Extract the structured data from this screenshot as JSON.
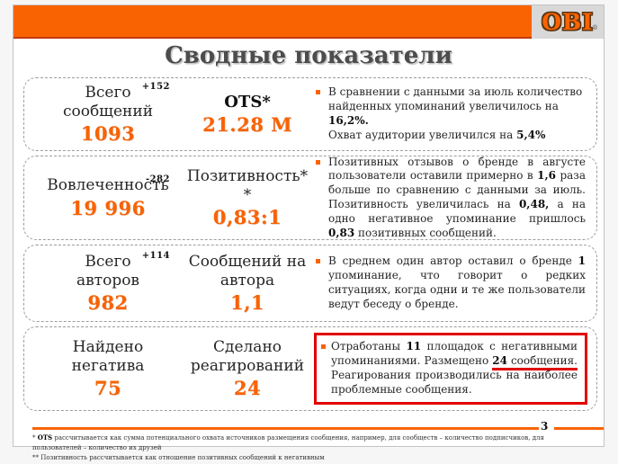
{
  "header": {
    "logo": "OBI",
    "logo_reg": "®",
    "brand_orange": "#f96302"
  },
  "title": "Сводные показатели",
  "rows": [
    {
      "metric1": {
        "label": "Всего\nсообщений",
        "delta": "+152",
        "value": "1093"
      },
      "metric2": {
        "label": "OTS*",
        "value": "21.28 M"
      },
      "note": [
        {
          "text": "В сравнении с данными за июль количество найденных упоминаний увеличилось на "
        },
        {
          "text": "16,2%.",
          "bold": true
        },
        {
          "text": "\nОхват аудитории увеличился на "
        },
        {
          "text": "5,4%",
          "bold": true
        }
      ]
    },
    {
      "metric1": {
        "label": "Вовлеченность",
        "delta": "-282",
        "value": "19 996"
      },
      "metric2": {
        "label": "Позитивность*\n*",
        "value": "0,83:1"
      },
      "note": [
        {
          "text": "Позитивных отзывов о бренде в августе пользователи оставили примерно в "
        },
        {
          "text": "1,6",
          "bold": true
        },
        {
          "text": " раза больше по сравнению с данными за июль. Позитивность увеличилась на "
        },
        {
          "text": "0,48,",
          "bold": true
        },
        {
          "text": " а на одно негативное упоминание пришлось "
        },
        {
          "text": "0,83",
          "bold": true
        },
        {
          "text": " позитивных сообщений."
        }
      ]
    },
    {
      "metric1": {
        "label": "Всего\nавторов",
        "delta": "+114",
        "value": "982"
      },
      "metric2": {
        "label": "Сообщений на\nавтора",
        "value": "1,1"
      },
      "note": [
        {
          "text": "В среднем один автор оставил о бренде "
        },
        {
          "text": "1",
          "bold": true
        },
        {
          "text": " упоминание, что говорит о редких ситуациях, когда одни и те же пользователи ведут беседу о бренде."
        }
      ]
    },
    {
      "metric1": {
        "label": "Найдено\nнегатива",
        "value": "75"
      },
      "metric2": {
        "label": "Сделано\nреагирований",
        "value": "24"
      },
      "note": [
        {
          "text": "Отработаны "
        },
        {
          "text": "11",
          "bold": true
        },
        {
          "text": " площадок с негативными упоминаниями. Размещено "
        },
        {
          "text": "24",
          "bold": true,
          "underline": true
        },
        {
          "text": " сообщения.",
          "underline": true
        },
        {
          "text": " Реагирования производились на наиболее проблемные сообщения."
        }
      ]
    }
  ],
  "annotation": {
    "highlight_color": "#e10000"
  },
  "footer": {
    "page_number": "3",
    "footnotes": [
      [
        {
          "text": "* "
        },
        {
          "text": "OTS",
          "bold": true
        },
        {
          "text": " рассчитывается как сумма потенциального охвата источников размещения сообщения, например, для сообществ – количество подписчиков, для пользователей – количество их друзей"
        }
      ],
      [
        {
          "text": "** Позитивность рассчитывается как отношение позитивных сообщений к негативным"
        }
      ]
    ]
  }
}
